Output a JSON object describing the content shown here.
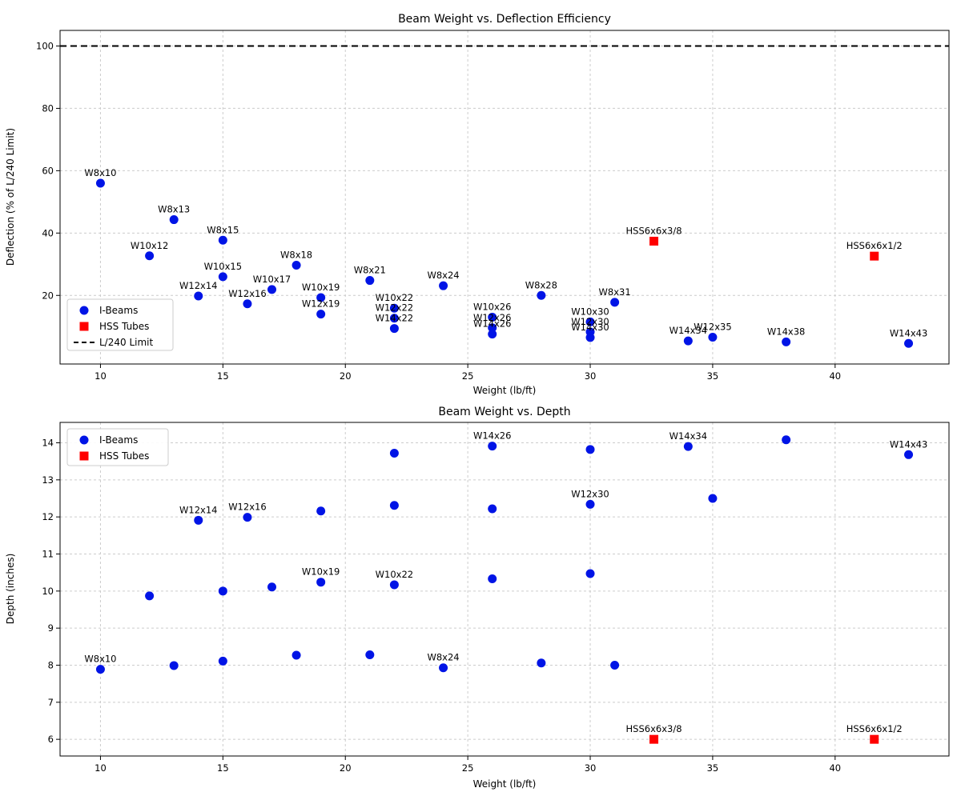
{
  "figure": {
    "background": "#ffffff",
    "accent_colors": {
      "ibeam": "#0014e6",
      "hss": "#ff0000",
      "limit": "#000000",
      "grid": "#cccccc"
    }
  },
  "chart_data": [
    {
      "type": "scatter",
      "title": "Beam Weight vs. Deflection Efficiency",
      "xlabel": "Weight (lb/ft)",
      "ylabel": "Deflection (% of L/240 Limit)",
      "xlim": [
        8.35,
        44.65
      ],
      "ylim": [
        -2,
        105
      ],
      "xticks": [
        10,
        15,
        20,
        25,
        30,
        35,
        40
      ],
      "yticks": [
        20,
        40,
        60,
        80,
        100
      ],
      "grid": true,
      "limit_line": {
        "y": 100,
        "color": "#000000",
        "style": "dashed"
      },
      "legend": {
        "position": "lower-left",
        "entries": [
          {
            "label": "I-Beams",
            "marker": "circle",
            "color": "#0014e6"
          },
          {
            "label": "HSS Tubes",
            "marker": "square",
            "color": "#ff0000"
          },
          {
            "label": "L/240 Limit",
            "marker": "dashed-line",
            "color": "#000000"
          }
        ]
      },
      "series": [
        {
          "name": "I-Beams",
          "marker": "circle",
          "color": "#0014e6",
          "points": [
            {
              "label": "W8x10",
              "x": 10,
              "y": 56.0,
              "annotate": true
            },
            {
              "label": "W10x12",
              "x": 12,
              "y": 32.7,
              "annotate": true
            },
            {
              "label": "W8x13",
              "x": 13,
              "y": 44.3,
              "annotate": true
            },
            {
              "label": "W12x14",
              "x": 14,
              "y": 19.8,
              "annotate": true
            },
            {
              "label": "W8x15",
              "x": 15,
              "y": 37.7,
              "annotate": true
            },
            {
              "label": "W10x15",
              "x": 15,
              "y": 26.0,
              "annotate": true
            },
            {
              "label": "W12x16",
              "x": 16,
              "y": 17.3,
              "annotate": true
            },
            {
              "label": "W10x17",
              "x": 17,
              "y": 21.9,
              "annotate": true
            },
            {
              "label": "W8x18",
              "x": 18,
              "y": 29.7,
              "annotate": true
            },
            {
              "label": "W10x19",
              "x": 19,
              "y": 19.3,
              "annotate": true
            },
            {
              "label": "W12x19",
              "x": 19,
              "y": 14.0,
              "annotate": true
            },
            {
              "label": "W8x21",
              "x": 21,
              "y": 24.8,
              "annotate": true
            },
            {
              "label": "W10x22",
              "x": 22,
              "y": 15.9,
              "annotate": true
            },
            {
              "label": "W12x22",
              "x": 22,
              "y": 12.7,
              "annotate": true
            },
            {
              "label": "W14x22",
              "x": 22,
              "y": 9.4,
              "annotate": true
            },
            {
              "label": "W8x24",
              "x": 24,
              "y": 23.1,
              "annotate": true
            },
            {
              "label": "W10x26",
              "x": 26,
              "y": 13.0,
              "annotate": true
            },
            {
              "label": "W12x26",
              "x": 26,
              "y": 9.6,
              "annotate": true
            },
            {
              "label": "W14x26",
              "x": 26,
              "y": 7.6,
              "annotate": true
            },
            {
              "label": "W8x28",
              "x": 28,
              "y": 20.0,
              "annotate": true
            },
            {
              "label": "W10x30",
              "x": 30,
              "y": 11.5,
              "annotate": true
            },
            {
              "label": "W12x30",
              "x": 30,
              "y": 8.3,
              "annotate": true
            },
            {
              "label": "W14x30",
              "x": 30,
              "y": 6.5,
              "annotate": true
            },
            {
              "label": "W8x31",
              "x": 31,
              "y": 17.8,
              "annotate": true
            },
            {
              "label": "W14x34",
              "x": 34,
              "y": 5.4,
              "annotate": true
            },
            {
              "label": "W12x35",
              "x": 35,
              "y": 6.6,
              "annotate": true
            },
            {
              "label": "W14x38",
              "x": 38,
              "y": 5.1,
              "annotate": true
            },
            {
              "label": "W14x43",
              "x": 43,
              "y": 4.6,
              "annotate": true
            }
          ]
        },
        {
          "name": "HSS Tubes",
          "marker": "square",
          "color": "#ff0000",
          "points": [
            {
              "label": "HSS6x6x3/8",
              "x": 32.6,
              "y": 37.4,
              "annotate": true
            },
            {
              "label": "HSS6x6x1/2",
              "x": 41.6,
              "y": 32.6,
              "annotate": true
            }
          ]
        }
      ]
    },
    {
      "type": "scatter",
      "title": "Beam Weight vs. Depth",
      "xlabel": "Weight (lb/ft)",
      "ylabel": "Depth (inches)",
      "xlim": [
        8.35,
        44.65
      ],
      "ylim": [
        5.55,
        14.55
      ],
      "xticks": [
        10,
        15,
        20,
        25,
        30,
        35,
        40
      ],
      "yticks": [
        6,
        7,
        8,
        9,
        10,
        11,
        12,
        13,
        14
      ],
      "grid": true,
      "legend": {
        "position": "upper-left",
        "entries": [
          {
            "label": "I-Beams",
            "marker": "circle",
            "color": "#0014e6"
          },
          {
            "label": "HSS Tubes",
            "marker": "square",
            "color": "#ff0000"
          }
        ]
      },
      "series": [
        {
          "name": "I-Beams",
          "marker": "circle",
          "color": "#0014e6",
          "points": [
            {
              "label": "W8x10",
              "x": 10,
              "y": 7.89,
              "annotate": true
            },
            {
              "label": "W10x12",
              "x": 12,
              "y": 9.87,
              "annotate": false
            },
            {
              "label": "W8x13",
              "x": 13,
              "y": 7.99,
              "annotate": false
            },
            {
              "label": "W12x14",
              "x": 14,
              "y": 11.91,
              "annotate": true
            },
            {
              "label": "W8x15",
              "x": 15,
              "y": 8.11,
              "annotate": false
            },
            {
              "label": "W10x15",
              "x": 15,
              "y": 10.0,
              "annotate": false
            },
            {
              "label": "W12x16",
              "x": 16,
              "y": 11.99,
              "annotate": true
            },
            {
              "label": "W10x17",
              "x": 17,
              "y": 10.11,
              "annotate": false
            },
            {
              "label": "W8x18",
              "x": 18,
              "y": 8.27,
              "annotate": false
            },
            {
              "label": "W10x19",
              "x": 19,
              "y": 10.24,
              "annotate": true
            },
            {
              "label": "W12x19",
              "x": 19,
              "y": 12.16,
              "annotate": false
            },
            {
              "label": "W8x21",
              "x": 21,
              "y": 8.28,
              "annotate": false
            },
            {
              "label": "W10x22",
              "x": 22,
              "y": 10.17,
              "annotate": true
            },
            {
              "label": "W12x22",
              "x": 22,
              "y": 12.31,
              "annotate": false
            },
            {
              "label": "W14x22",
              "x": 22,
              "y": 13.72,
              "annotate": false
            },
            {
              "label": "W8x24",
              "x": 24,
              "y": 7.93,
              "annotate": true
            },
            {
              "label": "W10x26",
              "x": 26,
              "y": 10.33,
              "annotate": false
            },
            {
              "label": "W12x26",
              "x": 26,
              "y": 12.22,
              "annotate": false
            },
            {
              "label": "W14x26",
              "x": 26,
              "y": 13.91,
              "annotate": true
            },
            {
              "label": "W8x28",
              "x": 28,
              "y": 8.06,
              "annotate": false
            },
            {
              "label": "W10x30",
              "x": 30,
              "y": 10.47,
              "annotate": false
            },
            {
              "label": "W12x30",
              "x": 30,
              "y": 12.34,
              "annotate": true
            },
            {
              "label": "W14x30",
              "x": 30,
              "y": 13.82,
              "annotate": false
            },
            {
              "label": "W8x31",
              "x": 31,
              "y": 8.0,
              "annotate": false
            },
            {
              "label": "W14x34",
              "x": 34,
              "y": 13.9,
              "annotate": true
            },
            {
              "label": "W12x35",
              "x": 35,
              "y": 12.5,
              "annotate": false
            },
            {
              "label": "W14x38",
              "x": 38,
              "y": 14.08,
              "annotate": false
            },
            {
              "label": "W14x43",
              "x": 43,
              "y": 13.68,
              "annotate": true
            }
          ]
        },
        {
          "name": "HSS Tubes",
          "marker": "square",
          "color": "#ff0000",
          "points": [
            {
              "label": "HSS6x6x3/8",
              "x": 32.6,
              "y": 6.0,
              "annotate": true
            },
            {
              "label": "HSS6x6x1/2",
              "x": 41.6,
              "y": 6.0,
              "annotate": true
            }
          ]
        }
      ]
    }
  ]
}
